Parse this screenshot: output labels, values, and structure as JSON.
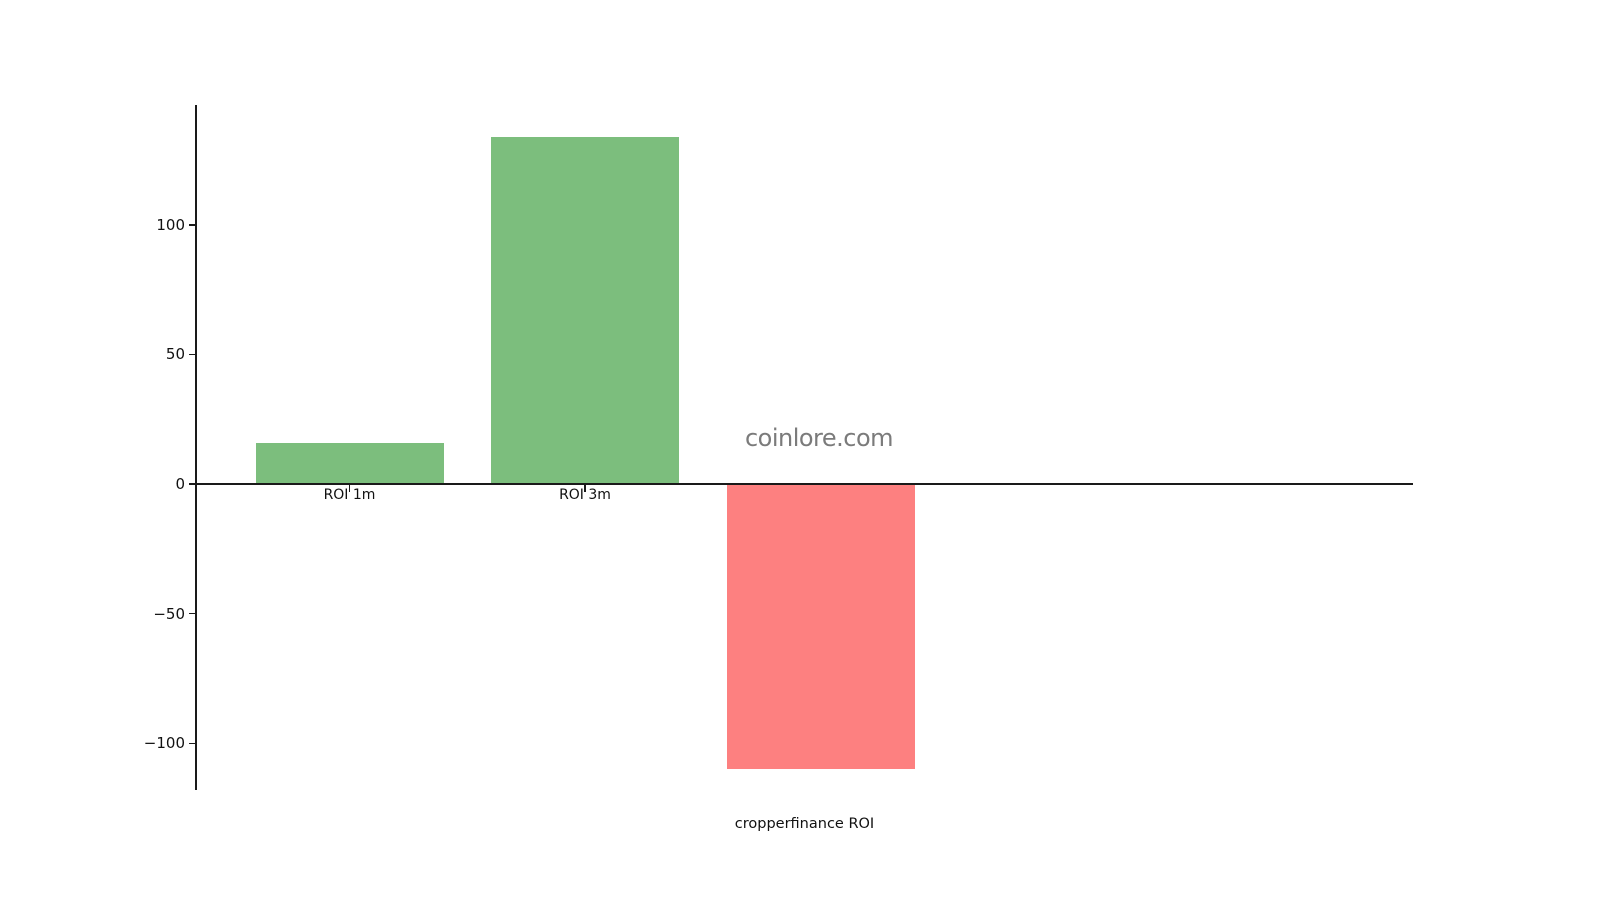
{
  "page": {
    "background": "#ffffff"
  },
  "watermark": {
    "text": "coinlore.com",
    "color": "#7b7b7b"
  },
  "chart_data": {
    "type": "bar",
    "title": "cropperfinance ROI",
    "categories": [
      "ROI 1m",
      "ROI 3m",
      ""
    ],
    "values": [
      16,
      134,
      -110
    ],
    "positive_color": "#7cbe7d",
    "negative_color": "#fd8080",
    "axis_color": "#1a1a1a",
    "yticks": [
      100,
      50,
      0,
      -50,
      -100
    ],
    "ytick_labels": [
      "100",
      "50",
      "0",
      "−50",
      "−100"
    ],
    "ylim": [
      -118,
      146.2
    ],
    "grid": false,
    "legend": false,
    "notes": "x tick label of third (negative) bar is hidden behind the bar; watermark coinlore.com overlays plot center-right above zero line"
  }
}
